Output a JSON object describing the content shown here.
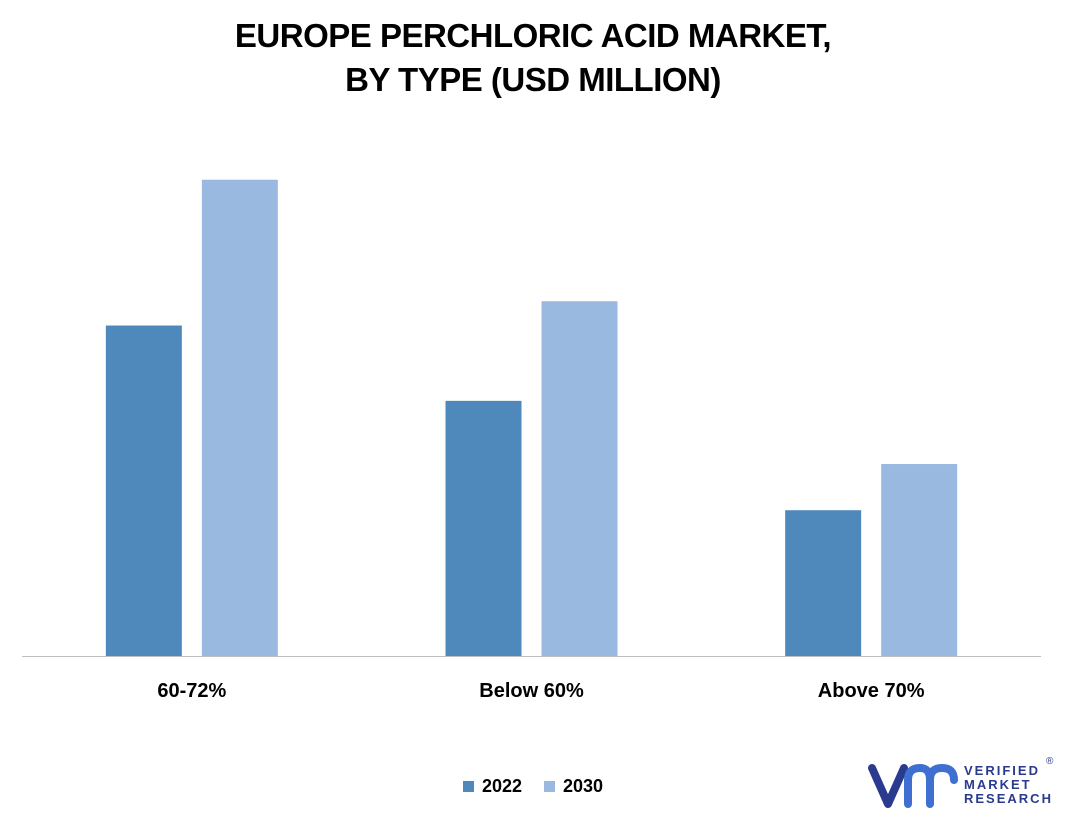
{
  "title_lines": [
    "EUROPE PERCHLORIC ACID MARKET,",
    "BY TYPE (USD MILLION)"
  ],
  "chart_data": {
    "type": "bar",
    "title": "EUROPE PERCHLORIC ACID MARKET, BY TYPE (USD MILLION)",
    "categories": [
      "60-72%",
      "Below 60%",
      "Above 70%"
    ],
    "series": [
      {
        "name": "2022",
        "values": [
          68,
          52.5,
          30
        ],
        "color": "#4f88bb"
      },
      {
        "name": "2030",
        "values": [
          98,
          73,
          39.5
        ],
        "color": "#9ab9e0"
      }
    ],
    "ylim": [
      0,
      100
    ],
    "grid": false,
    "legend_position": "bottom-center",
    "xlabel": "",
    "ylabel": ""
  },
  "legend": [
    {
      "label": "2022",
      "color": "#4f88bb"
    },
    {
      "label": "2030",
      "color": "#9ab9e0"
    }
  ],
  "logo": {
    "lines": [
      "VERIFIED",
      "MARKET",
      "RESEARCH"
    ],
    "mark": "vmr-logo-icon",
    "color": "#2a3a8f",
    "registered": "®"
  }
}
